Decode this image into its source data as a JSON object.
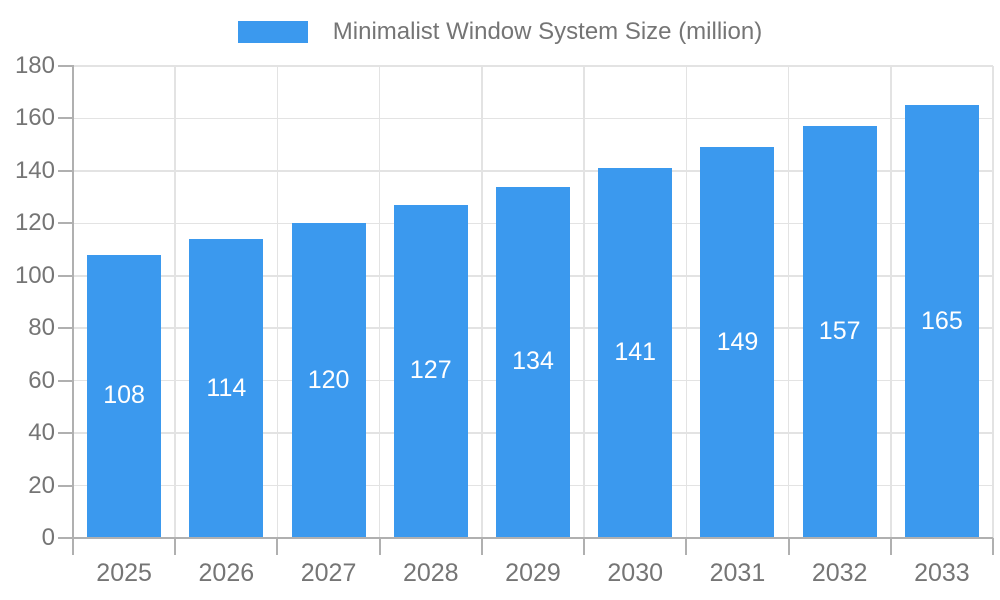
{
  "legend": {
    "label": "Minimalist Window System Size (million)"
  },
  "chart_data": {
    "type": "bar",
    "title": "Minimalist Window System Size (million)",
    "series_name": "Minimalist Window System Size (million)",
    "categories": [
      "2025",
      "2026",
      "2027",
      "2028",
      "2029",
      "2030",
      "2031",
      "2032",
      "2033"
    ],
    "values": [
      108,
      114,
      120,
      127,
      134,
      141,
      149,
      157,
      165
    ],
    "data_labels": [
      "108",
      "114",
      "120",
      "127",
      "134",
      "141",
      "149",
      "157",
      "165"
    ],
    "ylim": [
      0,
      180
    ],
    "ytick_step": 20,
    "yticks": [
      0,
      20,
      40,
      60,
      80,
      100,
      120,
      140,
      160,
      180
    ],
    "grid": true,
    "legend_position": "top",
    "colors": {
      "bar": "#3b99ee",
      "bar_label": "#ffffff",
      "axis_text": "#757575",
      "axis_line": "#b0b0b0",
      "gridline": "#e3e3e3",
      "background": "#ffffff"
    }
  }
}
